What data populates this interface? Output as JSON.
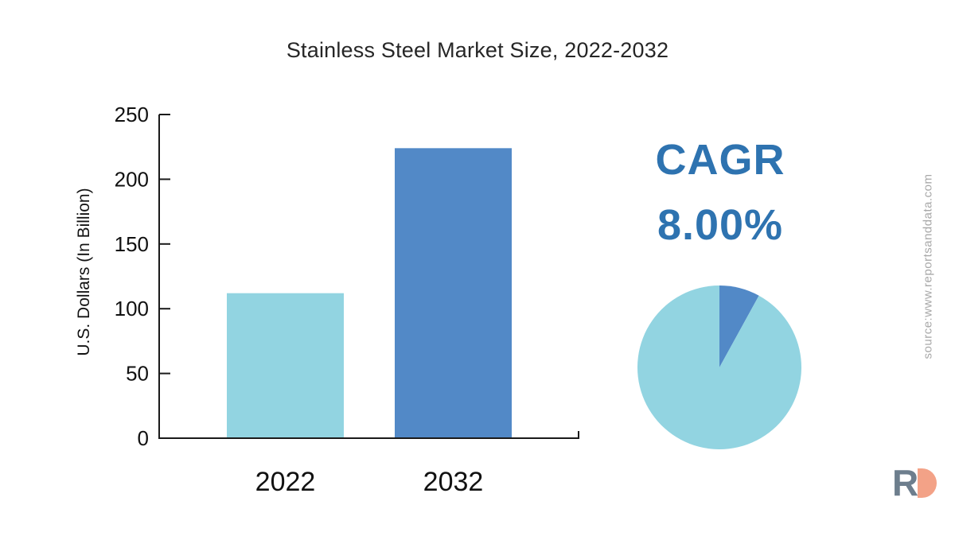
{
  "chart_data": [
    {
      "type": "bar",
      "title": "Stainless Steel Market Size, 2022-2032",
      "categories": [
        "2022",
        "2032"
      ],
      "values": [
        112,
        224
      ],
      "bar_colors": [
        "#92d4e1",
        "#5289c7"
      ],
      "xlabel": "",
      "ylabel": "U.S. Dollars (In Billion)",
      "ylim": [
        0,
        250
      ],
      "yticks": [
        0,
        50,
        100,
        150,
        200,
        250
      ],
      "grid": false,
      "legend": "none",
      "axis_color": "#1a1a1a",
      "tick_label_color": "#111111"
    },
    {
      "type": "pie",
      "title": "CAGR 8.00%",
      "slices": [
        {
          "name": "cagr",
          "value": 8,
          "color": "#5289c7"
        },
        {
          "name": "remainder",
          "value": 92,
          "color": "#92d4e1"
        }
      ],
      "start_angle_deg": 0,
      "direction": "clockwise",
      "legend": "none"
    }
  ],
  "annotations": {
    "cagr_label": "CAGR",
    "cagr_value": "8.00%",
    "cagr_color": "#2e73b0"
  },
  "source_note": "source:www.reportsanddata.com",
  "logo": {
    "r_letter": "R",
    "r_color": "#6d7e8d",
    "d_color": "#f3a287"
  }
}
